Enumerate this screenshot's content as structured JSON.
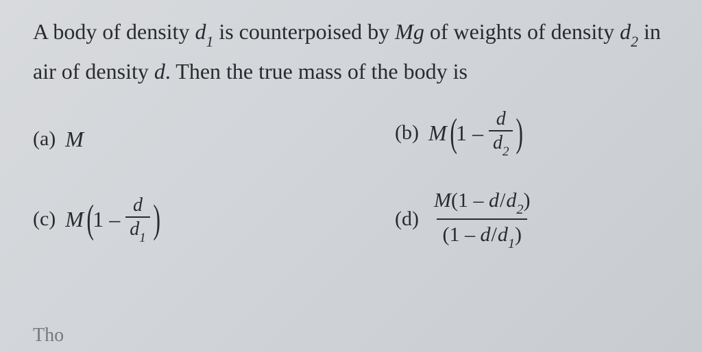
{
  "question": {
    "part1": "A body of density ",
    "d1_var": "d",
    "d1_sub": "1",
    "part2": " is counterpoised by ",
    "mg": "Mg",
    "part3": " of weights of density ",
    "d2_var": "d",
    "d2_sub": "2",
    "part4": " in air of density ",
    "d_var": "d",
    "part5": ". Then the true mass of the body is"
  },
  "options": {
    "a": {
      "label": "(a)",
      "value_M": "M"
    },
    "b": {
      "label": "(b)",
      "M": "M",
      "lparen": "(",
      "one_minus": "1 –",
      "frac_num": "d",
      "frac_den_var": "d",
      "frac_den_sub": "2",
      "rparen": ")"
    },
    "c": {
      "label": "(c)",
      "M": "M",
      "lparen": "(",
      "one_minus": "1 –",
      "frac_num": "d",
      "frac_den_var": "d",
      "frac_den_sub": "1",
      "rparen": ")"
    },
    "d": {
      "label": "(d)",
      "num_M": "M",
      "num_lparen": "(",
      "num_one": "1",
      "num_minus": " – ",
      "num_d": "d",
      "num_slash": "/",
      "num_dvar": "d",
      "num_dsub": "2",
      "num_rparen": ")",
      "den_lparen": "(",
      "den_one": "1",
      "den_minus": " – ",
      "den_d": "d",
      "den_slash": "/",
      "den_dvar": "d",
      "den_dsub": "1",
      "den_rparen": ")"
    }
  },
  "bottom_text": "Tho",
  "style": {
    "bg_color": "#d4d7da",
    "text_color": "#2a2a2e",
    "question_fontsize": 32,
    "option_fontsize": 32,
    "frac_fontsize": 28,
    "paren_fontsize": 58,
    "line_color": "#2a2a2e"
  }
}
